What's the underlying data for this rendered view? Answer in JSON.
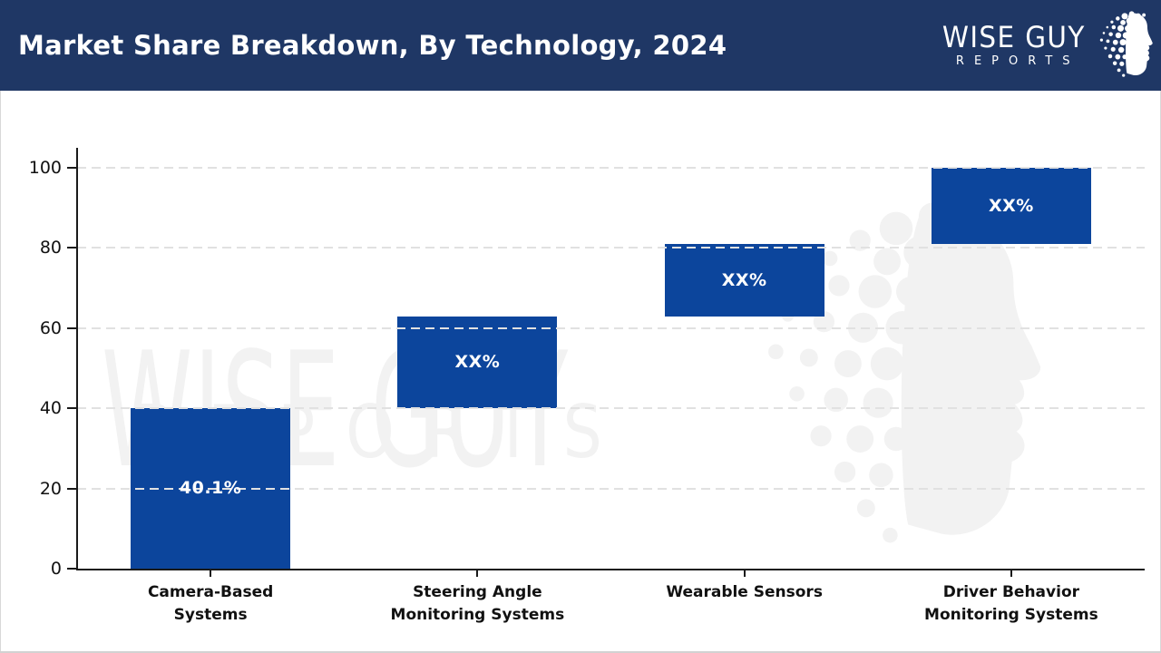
{
  "header": {
    "title": "Market Share Breakdown, By Technology, 2024"
  },
  "logo": {
    "brand_line1": "WISE GUY",
    "brand_line2": "REPORTS"
  },
  "watermark": {
    "line1": "WISE GUY",
    "line2": "REPORTS"
  },
  "colors": {
    "header_bg": "#1f3765",
    "bar": "#0c459c",
    "grid": "#e1e1e1",
    "axis": "#1a1a1a",
    "watermark": "#f2f2f2",
    "label_on_bar": "#ffffff"
  },
  "chart_data": {
    "type": "bar",
    "variant": "waterfall",
    "title": "Market Share Breakdown, By Technology, 2024",
    "categories": [
      "Camera-Based\nSystems",
      "Steering Angle\nMonitoring Systems",
      "Wearable Sensors",
      "Driver Behavior\nMonitoring Systems"
    ],
    "bars": [
      {
        "start": 0,
        "end": 40.1,
        "label": "40.1%"
      },
      {
        "start": 40.1,
        "end": 63,
        "label": "XX%"
      },
      {
        "start": 63,
        "end": 81,
        "label": "XX%"
      },
      {
        "start": 81,
        "end": 100,
        "label": "XX%"
      }
    ],
    "y_ticks": [
      0,
      20,
      40,
      60,
      80,
      100
    ],
    "ylim": [
      0,
      100
    ],
    "xlabel": "",
    "ylabel": "",
    "grid": "horizontal-dashed",
    "legend": "none"
  }
}
